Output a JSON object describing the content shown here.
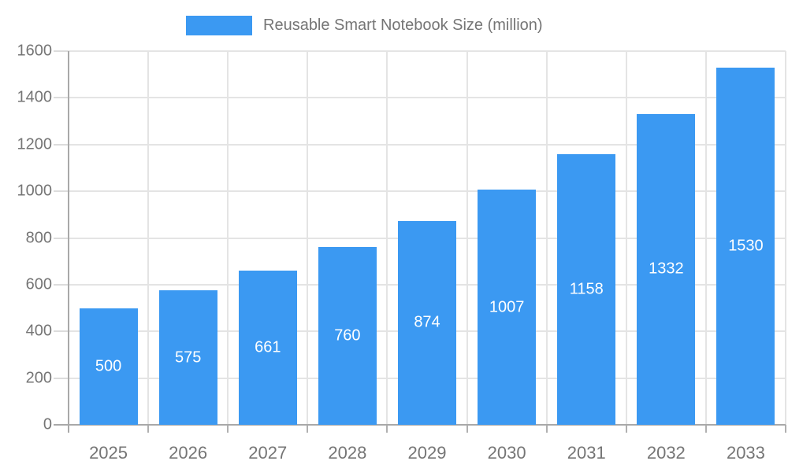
{
  "chart_data": {
    "type": "bar",
    "title": "Reusable Smart Notebook Size (million)",
    "categories": [
      "2025",
      "2026",
      "2027",
      "2028",
      "2029",
      "2030",
      "2031",
      "2032",
      "2033"
    ],
    "values": [
      500,
      575,
      661,
      760,
      874,
      1007,
      1158,
      1332,
      1530
    ],
    "xlabel": "",
    "ylabel": "",
    "ylim": [
      0,
      1600
    ],
    "y_ticks": [
      0,
      200,
      400,
      600,
      800,
      1000,
      1200,
      1400,
      1600
    ],
    "grid": true,
    "legend_position": "top",
    "value_labels": "inside-center",
    "colors": {
      "bar": "#3b99f2",
      "grid": "#e4e4e4",
      "axis": "#a9a9a9",
      "y_tick": "#dcdcdc",
      "x_tick": "#b0b0b0",
      "text": "#757575",
      "value_label": "#ffffff"
    }
  }
}
